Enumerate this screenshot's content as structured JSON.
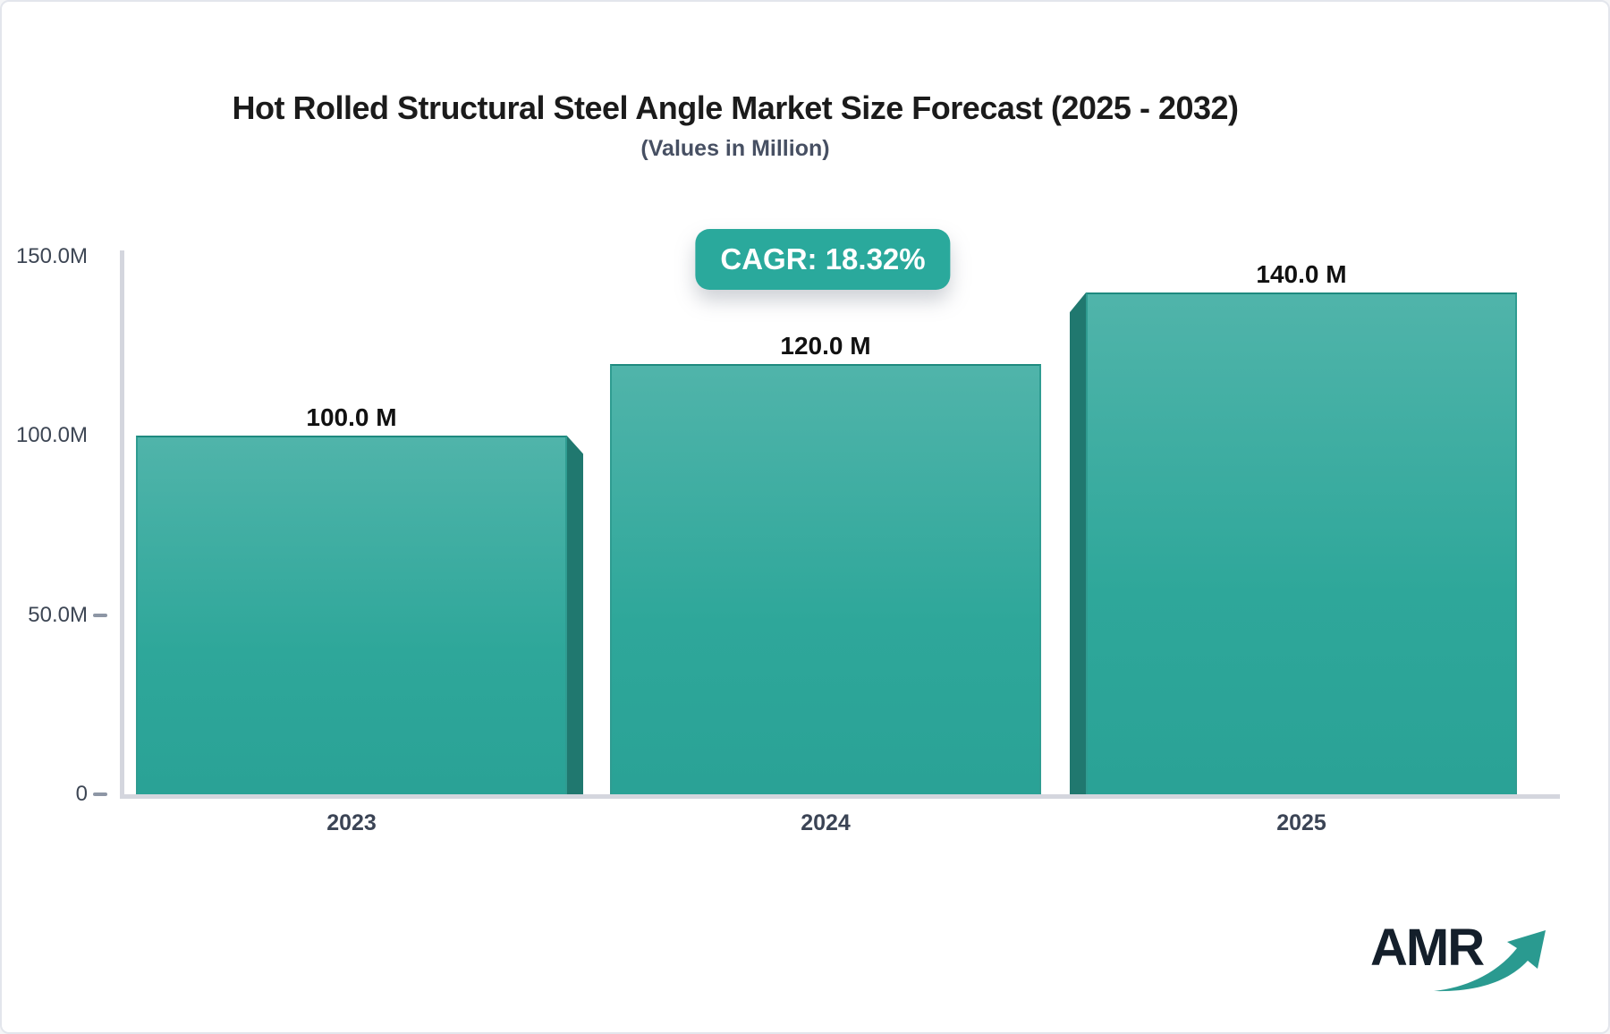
{
  "header": {
    "title": "Hot Rolled Structural Steel Angle Market Size Forecast (2025 - 2032)",
    "subtitle": "(Values in Million)"
  },
  "badge": {
    "label": "CAGR: 18.32%"
  },
  "logo": {
    "text": "AMR"
  },
  "chart_data": {
    "type": "bar",
    "title": "Hot Rolled Structural Steel Angle Market Size Forecast (2025 - 2032)",
    "subtitle": "(Values in Million)",
    "unit": "Million",
    "cagr": "18.32%",
    "categories": [
      "2023",
      "2024",
      "2025"
    ],
    "values": [
      100,
      120,
      140
    ],
    "bar_labels": [
      "100.0 M",
      "120.0 M",
      "140.0 M"
    ],
    "ylim": [
      0,
      150
    ],
    "grid": false,
    "legend": "none",
    "y_ticks": [
      {
        "label": "150.0M",
        "value": 150,
        "dash": false
      },
      {
        "label": "100.0M",
        "value": 100,
        "dash": false
      },
      {
        "label": "50.0M",
        "value": 50,
        "dash": true
      },
      {
        "label": "0",
        "value": 0,
        "dash": true
      }
    ],
    "colors": {
      "bar_top": "#50b4aa",
      "bar_bottom": "#2aa296",
      "bar_bevel": "#20786f",
      "accent": "#2aa99c",
      "axis_line": "#d4d6de",
      "axis_text": "#3d4654",
      "title_text": "#1b1b1b"
    }
  }
}
